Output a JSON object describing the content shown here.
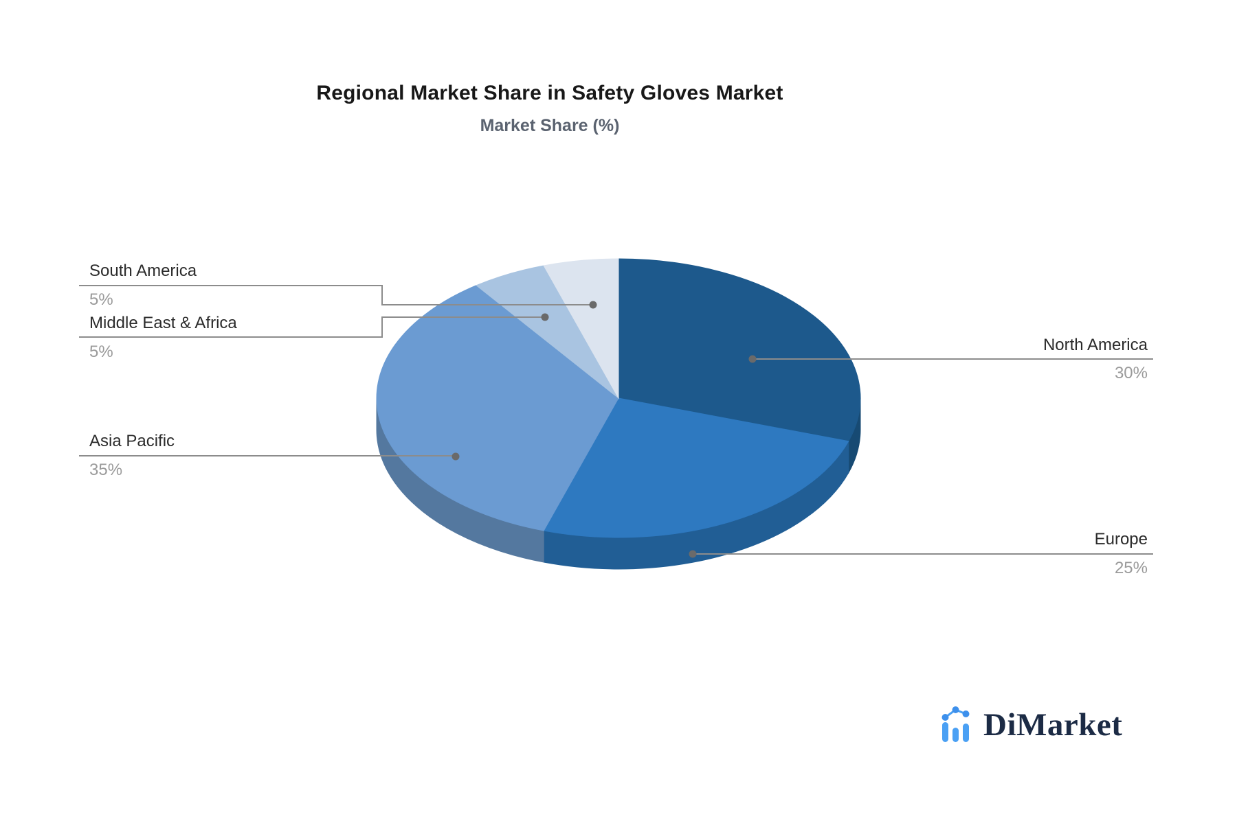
{
  "title": "Regional Market Share in Safety Gloves Market",
  "subtitle": "Market Share (%)",
  "chart_data": {
    "type": "pie",
    "style": "3d-pie",
    "title": "Regional Market Share in Safety Gloves Market",
    "subtitle": "Market Share (%)",
    "unit": "%",
    "start_angle_deg": 0,
    "clockwise": true,
    "slices": [
      {
        "label": "North America",
        "value": 30,
        "pct": "30%",
        "color": "#1d598c",
        "side_color": "#174a73"
      },
      {
        "label": "Europe",
        "value": 25,
        "pct": "25%",
        "color": "#2e79c0",
        "side_color": "#215e95"
      },
      {
        "label": "Asia Pacific",
        "value": 35,
        "pct": "35%",
        "color": "#6b9bd2",
        "side_color": "#54789f"
      },
      {
        "label": "Middle East & Africa",
        "value": 5,
        "pct": "5%",
        "color": "#a9c4e1",
        "side_color": "#8aa8c7"
      },
      {
        "label": "South America",
        "value": 5,
        "pct": "5%",
        "color": "#dce4ef",
        "side_color": "#b8c4d6"
      }
    ],
    "callout_line_color": "#8c8c8c",
    "callout_dot_color": "#6a6a6a"
  },
  "logo": {
    "text": "DiMarket",
    "icon": "bar-line-chart-icon",
    "icon_color": "#4aa0f4",
    "text_color": "#1c2b45"
  }
}
